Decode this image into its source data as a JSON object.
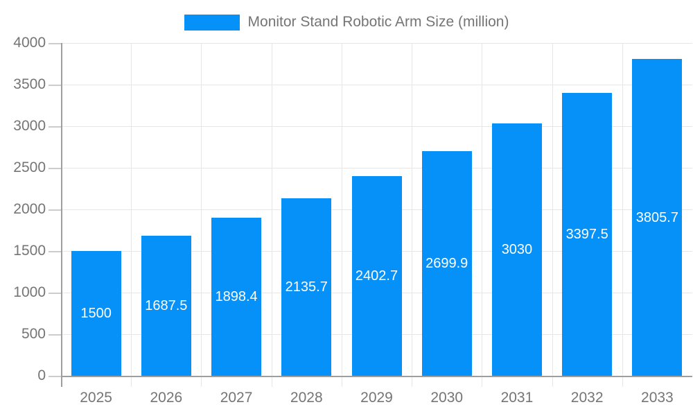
{
  "legend": {
    "label": "Monitor Stand Robotic Arm Size (million)",
    "swatch_color": "#0591f7"
  },
  "chart_data": {
    "type": "bar",
    "title": "Monitor Stand Robotic Arm Size (million)",
    "categories": [
      "2025",
      "2026",
      "2027",
      "2028",
      "2029",
      "2030",
      "2031",
      "2032",
      "2033"
    ],
    "series": [
      {
        "name": "Monitor Stand Robotic Arm Size (million)",
        "values": [
          1500,
          1687.5,
          1898.4,
          2135.7,
          2402.7,
          2699.9,
          3030,
          3397.5,
          3805.7
        ]
      }
    ],
    "value_labels": [
      "1500",
      "1687.5",
      "1898.4",
      "2135.7",
      "2402.7",
      "2699.9",
      "3030",
      "3397.5",
      "3805.7"
    ],
    "xlabel": "",
    "ylabel": "",
    "ylim": [
      0,
      4000
    ],
    "yticks": [
      0,
      500,
      1000,
      1500,
      2000,
      2500,
      3000,
      3500,
      4000
    ],
    "grid": true,
    "legend_position": "top"
  },
  "colors": {
    "bar": "#0591f7",
    "bar_value_text": "#ffffff",
    "axis_line": "#9e9e9e",
    "gridline": "#e6e6e6",
    "tick": "#cccccc",
    "label_text": "#757575",
    "background": "#ffffff"
  }
}
